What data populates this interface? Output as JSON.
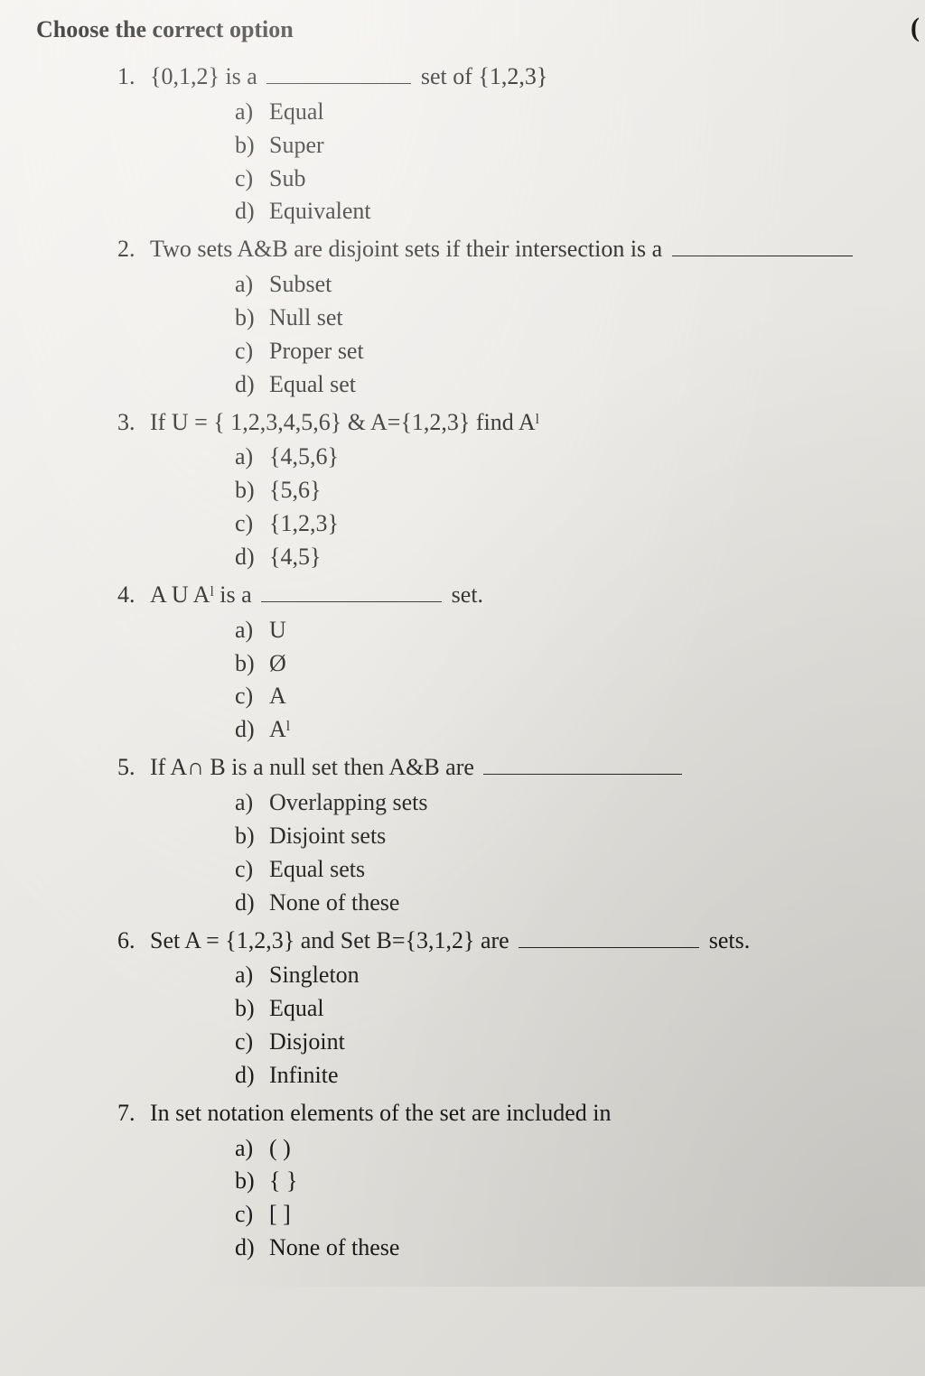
{
  "colors": {
    "text": "#1a1a1a",
    "bg_light": "#f5f3f0",
    "bg_mid": "#e8e6e2",
    "bg_dark": "#d8d6d1",
    "underline": "#222222"
  },
  "typography": {
    "family": "Times New Roman",
    "heading_size_pt": 19,
    "body_size_pt": 19,
    "line_height": 1.45
  },
  "heading": "Choose the correct option",
  "corner_mark": "(",
  "questions": [
    {
      "num": "1.",
      "pre": "{0,1,2} is a ",
      "blank": "short",
      "post": " set of {1,2,3}",
      "options": [
        {
          "label": "a)",
          "text": "Equal"
        },
        {
          "label": "b)",
          "text": "Super"
        },
        {
          "label": "c)",
          "text": "Sub"
        },
        {
          "label": "d)",
          "text": "Equivalent"
        }
      ]
    },
    {
      "num": "2.",
      "pre": "Two sets A&B are disjoint sets if their intersection is a ",
      "blank": "med",
      "post": "",
      "options": [
        {
          "label": "a)",
          "text": "Subset"
        },
        {
          "label": "b)",
          "text": "Null set"
        },
        {
          "label": "c)",
          "text": "Proper set"
        },
        {
          "label": "d)",
          "text": "Equal set"
        }
      ]
    },
    {
      "num": "3.",
      "pre": "If  U = { 1,2,3,4,5,6}  &  A={1,2,3} find Aˡ",
      "blank": "",
      "post": "",
      "options": [
        {
          "label": "a)",
          "text": "{4,5,6}"
        },
        {
          "label": "b)",
          "text": "{5,6}"
        },
        {
          "label": "c)",
          "text": "{1,2,3}"
        },
        {
          "label": "d)",
          "text": "{4,5}"
        }
      ]
    },
    {
      "num": "4.",
      "pre": "A U Aˡ  is a ",
      "blank": "med",
      "post": " set.",
      "options": [
        {
          "label": "a)",
          "text": "U"
        },
        {
          "label": "b)",
          "text": "Ø"
        },
        {
          "label": "c)",
          "text": "A"
        },
        {
          "label": "d)",
          "text": "Aˡ"
        }
      ]
    },
    {
      "num": "5.",
      "pre": "If  A∩ B  is a null set then A&B are ",
      "blank": "long",
      "post": "",
      "options": [
        {
          "label": "a)",
          "text": "Overlapping sets"
        },
        {
          "label": "b)",
          "text": "Disjoint sets"
        },
        {
          "label": "c)",
          "text": "Equal sets"
        },
        {
          "label": "d)",
          "text": "None of these"
        }
      ]
    },
    {
      "num": "6.",
      "pre": "Set A = {1,2,3} and  Set B={3,1,2} are ",
      "blank": "med",
      "post": " sets.",
      "options": [
        {
          "label": "a)",
          "text": "Singleton"
        },
        {
          "label": "b)",
          "text": "Equal"
        },
        {
          "label": "c)",
          "text": "Disjoint"
        },
        {
          "label": "d)",
          "text": "Infinite"
        }
      ]
    },
    {
      "num": "7.",
      "pre": "In set notation elements of the set are included in",
      "blank": "",
      "post": "",
      "options": [
        {
          "label": "a)",
          "text": "( )"
        },
        {
          "label": "b)",
          "text": "{ }"
        },
        {
          "label": "c)",
          "text": "[ ]"
        },
        {
          "label": "d)",
          "text": "None of these"
        }
      ]
    }
  ]
}
